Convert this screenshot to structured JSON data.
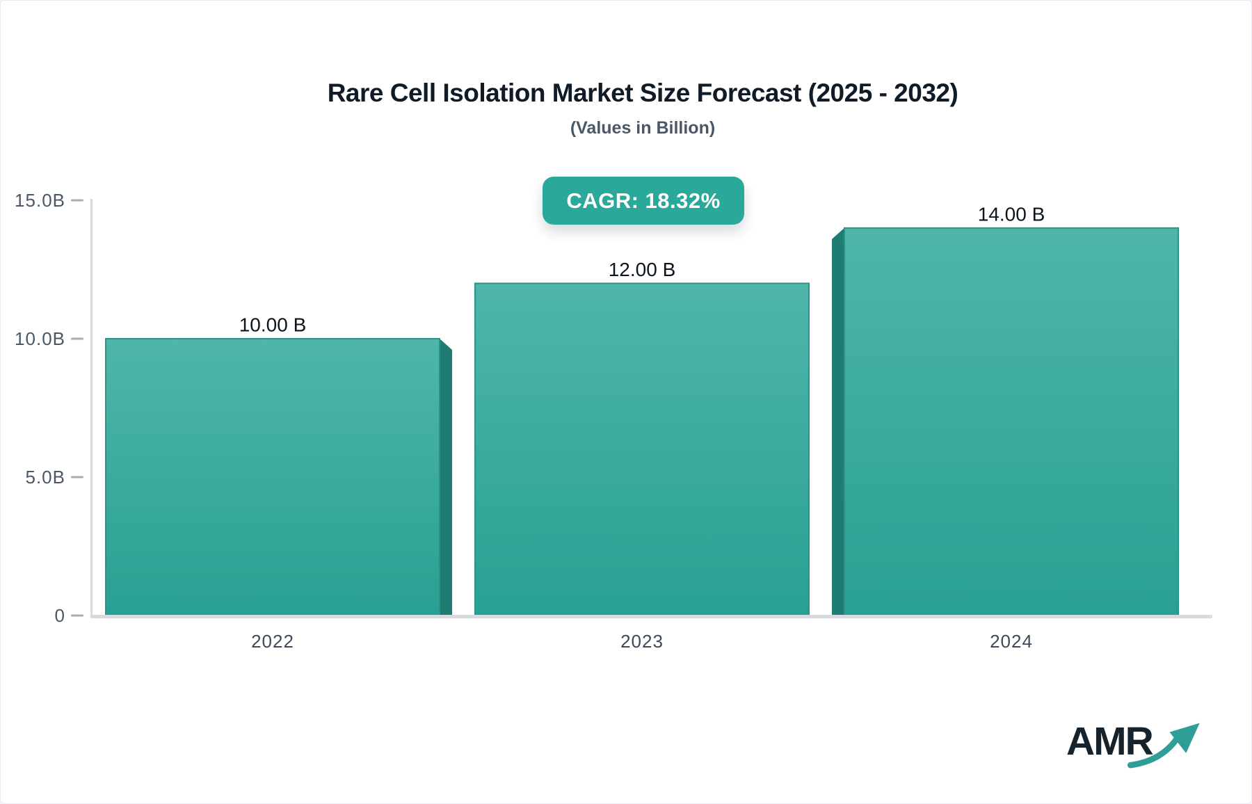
{
  "chart_data": {
    "type": "bar",
    "title": "Rare Cell Isolation Market Size Forecast (2025 - 2032)",
    "subtitle": "(Values in Billion)",
    "cagr_label": "CAGR: 18.32%",
    "categories": [
      "2022",
      "2023",
      "2024"
    ],
    "values": [
      10,
      12,
      14
    ],
    "value_labels": [
      "10.00 B",
      "12.00 B",
      "14.00 B"
    ],
    "ylim": [
      0,
      15
    ],
    "yticks": [
      {
        "value": 0,
        "label": "0"
      },
      {
        "value": 5,
        "label": "5.0B"
      },
      {
        "value": 10,
        "label": "10.0B"
      },
      {
        "value": 15,
        "label": "15.0B"
      }
    ],
    "grid": false,
    "legend": false,
    "xlabel": "",
    "ylabel": "",
    "colors": {
      "bar_gradient_top": "#4fb6a9",
      "bar_gradient_bottom": "#28a093",
      "bar_edge": "#2b9488",
      "bar_side_face": "#1f7c72",
      "badge_background": "#2aa89a",
      "badge_text": "#ffffff",
      "axis_line": "#d7dade",
      "tick_dash": "#a6adb6",
      "tick_label": "#4a5767",
      "x_label": "#3e4a59",
      "value_label": "#0c151d",
      "title": "#0f1b26",
      "subtitle": "#4a5767",
      "logo_text": "#16222c",
      "logo_arrow": "#2f9e96"
    }
  },
  "footer": {
    "logo_text": "AMR"
  }
}
